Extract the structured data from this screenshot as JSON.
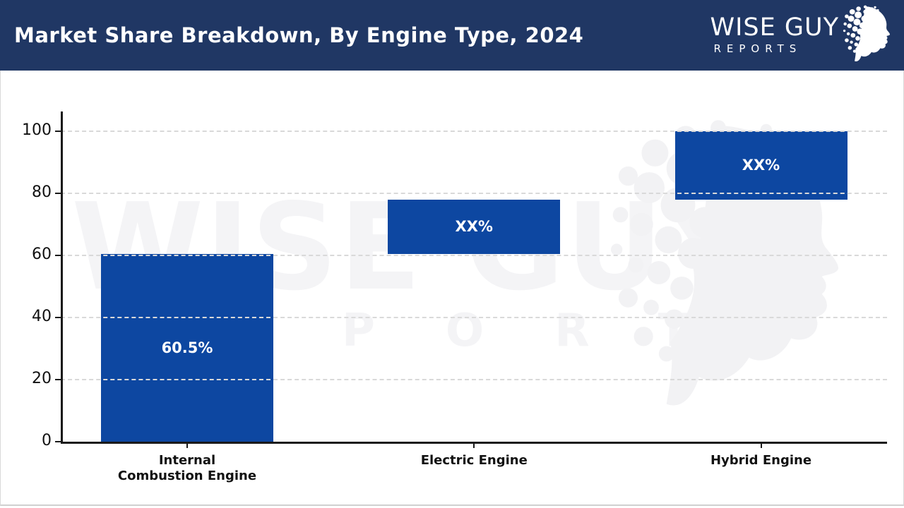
{
  "header": {
    "title": "Market Share Breakdown, By Engine Type, 2024",
    "bg_color": "#203764",
    "logo": {
      "line1": "WISE GUY",
      "line2": "REPORTS",
      "head_icon": "dotted-head-profile"
    }
  },
  "watermark": {
    "line1": "WISE GUY",
    "line2": "REPORTS",
    "color": "#f4f4f6"
  },
  "chart_data": {
    "type": "bar",
    "subtype": "floating-waterfall-bars",
    "title": "Market Share Breakdown, By Engine Type, 2024",
    "categories": [
      "Internal Combustion Engine",
      "Electric Engine",
      "Hybrid Engine"
    ],
    "category_label_lines": [
      [
        "Internal",
        "Combustion Engine"
      ],
      [
        "Electric Engine"
      ],
      [
        "Hybrid Engine"
      ]
    ],
    "segments": [
      {
        "category": "Internal Combustion Engine",
        "start": 0,
        "end": 60.5,
        "label": "60.5%"
      },
      {
        "category": "Electric Engine",
        "start": 60.5,
        "end": 78,
        "label": "XX%"
      },
      {
        "category": "Hybrid Engine",
        "start": 78,
        "end": 100,
        "label": "XX%"
      }
    ],
    "bar_color": "#0d47a1",
    "bar_label_color": "#ffffff",
    "axis_color": "#1a1a1a",
    "gridline_color": "#d9d9d9",
    "ylim": [
      0,
      100
    ],
    "yticks": [
      0,
      20,
      40,
      60,
      80,
      100
    ],
    "grid": true,
    "gridline_style": "dashed",
    "legend": "none"
  }
}
